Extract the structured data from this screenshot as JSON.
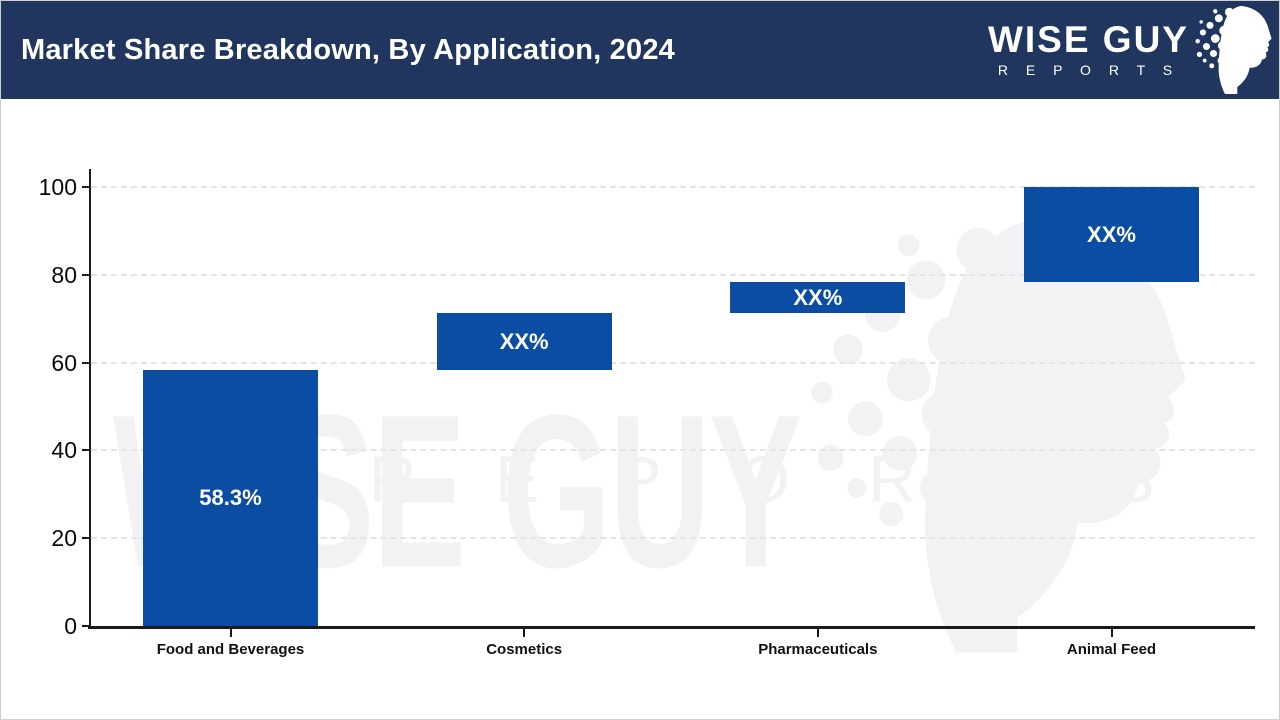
{
  "header": {
    "title": "Market Share Breakdown, By Application, 2024",
    "logo": {
      "line1": "WISE GUY",
      "line2": "R E P O R T S"
    }
  },
  "watermark": {
    "line1": "WISE GUY",
    "line2": "R E P O R T S"
  },
  "chart_data": {
    "type": "bar",
    "subtype": "waterfall",
    "title": "Market Share Breakdown, By Application, 2024",
    "categories": [
      "Food and Beverages",
      "Cosmetics",
      "Pharmaceuticals",
      "Animal Feed"
    ],
    "bars": [
      {
        "category": "Food and Beverages",
        "start": 0,
        "end": 58.3,
        "label": "58.3%"
      },
      {
        "category": "Cosmetics",
        "start": 58.3,
        "end": 71.2,
        "label": "XX%"
      },
      {
        "category": "Pharmaceuticals",
        "start": 71.2,
        "end": 78.3,
        "label": "XX%"
      },
      {
        "category": "Animal Feed",
        "start": 78.3,
        "end": 100,
        "label": "XX%"
      }
    ],
    "yticks": [
      0,
      20,
      40,
      60,
      80,
      100
    ],
    "ylim": [
      0,
      104
    ],
    "xlabel": "",
    "ylabel": "",
    "grid": "horizontal-dashed",
    "legend": false,
    "colors": {
      "header_bg": "#21365E",
      "bar": "#0B4DA2",
      "grid": "#E4E4E4",
      "axis": "#1A1A1A",
      "bar_label_text": "#FFFFFF",
      "tick_text": "#0A0A0A",
      "watermark": "#F2F2F4"
    }
  }
}
